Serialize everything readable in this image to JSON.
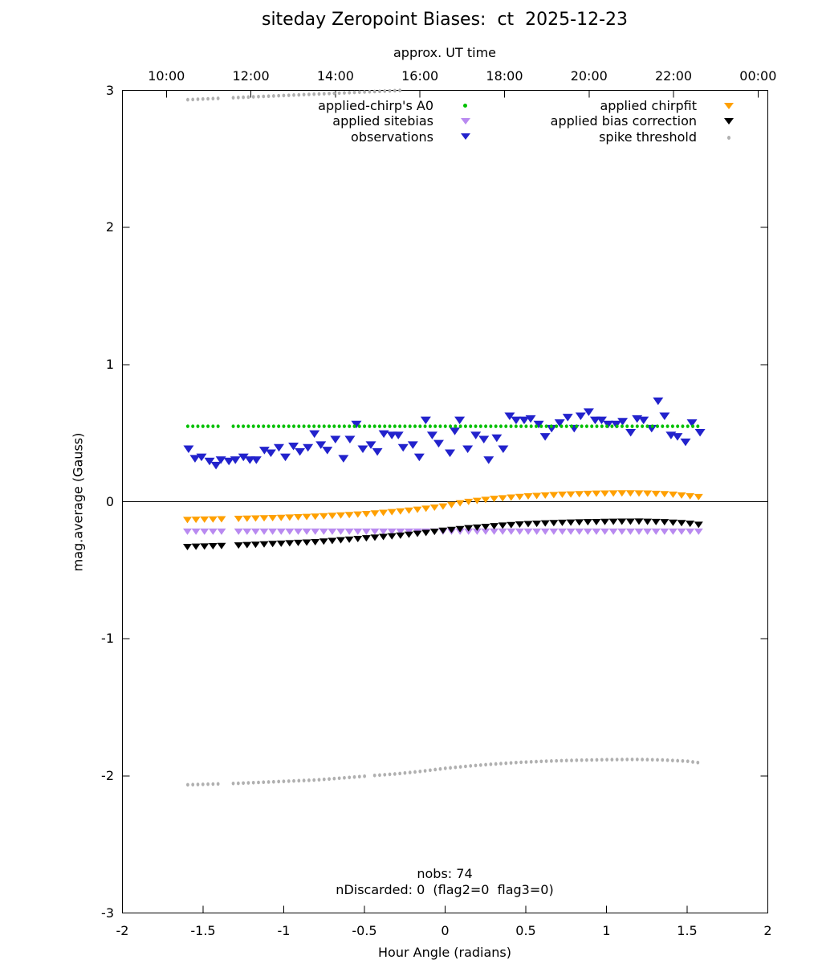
{
  "chart_data": {
    "type": "scatter",
    "title": "siteday Zeropoint Biases:  ct  2025-12-23",
    "x2label": "approx. UT time",
    "xlabel": "Hour Angle (radians)",
    "ylabel": "mag.average (Gauss)",
    "xlim": [
      -2,
      2
    ],
    "ylim": [
      -3,
      3
    ],
    "xticks": [
      -2,
      -1.5,
      -1,
      -0.5,
      0,
      0.5,
      1,
      1.5,
      2
    ],
    "yticks": [
      3,
      2,
      1,
      0,
      -1,
      -2,
      -3
    ],
    "x2ticks": [
      "10:00",
      "12:00",
      "14:00",
      "16:00",
      "18:00",
      "20:00",
      "22:00",
      "00:00"
    ],
    "annotations": [
      "nobs: 74",
      "nDiscarded: 0  (flag2=0  flag3=0)"
    ],
    "grid": false,
    "zero_line": true,
    "legend": {
      "position": "top-inside-two-columns",
      "left": [
        {
          "label": "applied-chirp's A0",
          "marker": "dot",
          "color": "#00C000"
        },
        {
          "label": "applied sitebias",
          "marker": "triangle-down",
          "color": "#B98AF0"
        },
        {
          "label": "observations",
          "marker": "triangle-down",
          "color": "#2222CC"
        }
      ],
      "right": [
        {
          "label": "applied chirpfit",
          "marker": "triangle-down",
          "color": "#FFA000"
        },
        {
          "label": "applied bias correction",
          "marker": "triangle-down",
          "color": "#000000"
        },
        {
          "label": "spike threshold",
          "marker": "dot",
          "color": "#B0B0B0"
        }
      ]
    },
    "gap": [
      -1.38,
      -1.318
    ],
    "series": {
      "a0": {
        "name": "applied-chirp's A0",
        "marker": "dot",
        "color": "#00C000",
        "style": "constant",
        "value": 0.55,
        "range": [
          -1.595,
          1.593
        ],
        "step": 0.0313
      },
      "sitebias": {
        "name": "applied sitebias",
        "marker": "triangle-down",
        "color": "#B98AF0",
        "style": "constant",
        "value": -0.213,
        "range": [
          -1.597,
          1.595
        ],
        "step": 0.0528
      },
      "chirpfit": {
        "name": "applied chirpfit",
        "marker": "triangle-down",
        "color": "#FFA000",
        "style": "curve",
        "range": [
          -1.597,
          1.595
        ],
        "step": 0.0528,
        "points": [
          [
            -1.6,
            -0.128
          ],
          [
            -1.3,
            -0.121
          ],
          [
            -1.0,
            -0.112
          ],
          [
            -0.8,
            -0.104
          ],
          [
            -0.6,
            -0.093
          ],
          [
            -0.4,
            -0.078
          ],
          [
            -0.2,
            -0.058
          ],
          [
            0,
            -0.028
          ],
          [
            0.12,
            0.0
          ],
          [
            0.3,
            0.025
          ],
          [
            0.5,
            0.043
          ],
          [
            0.7,
            0.055
          ],
          [
            0.9,
            0.063
          ],
          [
            1.1,
            0.066
          ],
          [
            1.25,
            0.065
          ],
          [
            1.4,
            0.058
          ],
          [
            1.5,
            0.047
          ],
          [
            1.6,
            0.035
          ]
        ]
      },
      "bias_correction": {
        "name": "applied bias correction",
        "marker": "triangle-down",
        "color": "#000000",
        "style": "curve",
        "range": [
          -1.597,
          1.595
        ],
        "step": 0.0528,
        "points": [
          [
            -1.6,
            -0.325
          ],
          [
            -1.3,
            -0.315
          ],
          [
            -1.0,
            -0.3
          ],
          [
            -0.8,
            -0.29
          ],
          [
            -0.6,
            -0.272
          ],
          [
            -0.45,
            -0.258
          ],
          [
            -0.3,
            -0.245
          ],
          [
            -0.15,
            -0.227
          ],
          [
            0,
            -0.205
          ],
          [
            0.15,
            -0.188
          ],
          [
            0.3,
            -0.174
          ],
          [
            0.45,
            -0.162
          ],
          [
            0.6,
            -0.154
          ],
          [
            0.75,
            -0.148
          ],
          [
            0.9,
            -0.144
          ],
          [
            1.05,
            -0.141
          ],
          [
            1.2,
            -0.14
          ],
          [
            1.35,
            -0.144
          ],
          [
            1.5,
            -0.153
          ],
          [
            1.6,
            -0.168
          ]
        ]
      },
      "observations": {
        "name": "observations",
        "marker": "triangle-down",
        "color": "#2222CC",
        "style": "scatter",
        "nobs": 74,
        "points": [
          [
            -1.59,
            0.39
          ],
          [
            -1.55,
            0.32
          ],
          [
            -1.51,
            0.33
          ],
          [
            -1.46,
            0.3
          ],
          [
            -1.42,
            0.27
          ],
          [
            -1.39,
            0.31
          ],
          [
            -1.34,
            0.3
          ],
          [
            -1.3,
            0.31
          ],
          [
            -1.25,
            0.33
          ],
          [
            -1.21,
            0.31
          ],
          [
            -1.17,
            0.31
          ],
          [
            -1.12,
            0.38
          ],
          [
            -1.08,
            0.36
          ],
          [
            -1.03,
            0.4
          ],
          [
            -0.99,
            0.33
          ],
          [
            -0.94,
            0.41
          ],
          [
            -0.9,
            0.37
          ],
          [
            -0.85,
            0.4
          ],
          [
            -0.81,
            0.5
          ],
          [
            -0.77,
            0.42
          ],
          [
            -0.73,
            0.38
          ],
          [
            -0.68,
            0.46
          ],
          [
            -0.63,
            0.32
          ],
          [
            -0.59,
            0.46
          ],
          [
            -0.55,
            0.57
          ],
          [
            -0.51,
            0.39
          ],
          [
            -0.46,
            0.42
          ],
          [
            -0.42,
            0.37
          ],
          [
            -0.38,
            0.5
          ],
          [
            -0.33,
            0.49
          ],
          [
            -0.29,
            0.49
          ],
          [
            -0.26,
            0.4
          ],
          [
            -0.2,
            0.42
          ],
          [
            -0.16,
            0.33
          ],
          [
            -0.12,
            0.6
          ],
          [
            -0.08,
            0.49
          ],
          [
            -0.04,
            0.43
          ],
          [
            0.03,
            0.36
          ],
          [
            0.06,
            0.52
          ],
          [
            0.09,
            0.6
          ],
          [
            0.14,
            0.39
          ],
          [
            0.19,
            0.49
          ],
          [
            0.24,
            0.46
          ],
          [
            0.27,
            0.31
          ],
          [
            0.32,
            0.47
          ],
          [
            0.36,
            0.39
          ],
          [
            0.4,
            0.63
          ],
          [
            0.44,
            0.6
          ],
          [
            0.49,
            0.6
          ],
          [
            0.53,
            0.61
          ],
          [
            0.58,
            0.57
          ],
          [
            0.62,
            0.48
          ],
          [
            0.66,
            0.54
          ],
          [
            0.71,
            0.58
          ],
          [
            0.76,
            0.62
          ],
          [
            0.8,
            0.54
          ],
          [
            0.84,
            0.63
          ],
          [
            0.89,
            0.66
          ],
          [
            0.93,
            0.6
          ],
          [
            0.97,
            0.6
          ],
          [
            1.01,
            0.57
          ],
          [
            1.06,
            0.57
          ],
          [
            1.1,
            0.59
          ],
          [
            1.15,
            0.51
          ],
          [
            1.19,
            0.61
          ],
          [
            1.23,
            0.6
          ],
          [
            1.28,
            0.54
          ],
          [
            1.32,
            0.74
          ],
          [
            1.36,
            0.63
          ],
          [
            1.4,
            0.49
          ],
          [
            1.44,
            0.48
          ],
          [
            1.49,
            0.44
          ],
          [
            1.53,
            0.58
          ],
          [
            1.58,
            0.51
          ]
        ]
      },
      "spike_threshold": {
        "name": "spike threshold",
        "marker": "dot",
        "color": "#B0B0B0",
        "style": "threshold-band",
        "step": 0.0313,
        "top_line": [
          [
            -1.595,
            2.932
          ],
          [
            -0.27,
            3.0
          ]
        ],
        "bottom_base": "bias_correction",
        "bottom_offset": -1.74,
        "bottom_range": [
          -1.595,
          1.593
        ],
        "bottom_gap2": [
          -0.48,
          -0.455
        ]
      }
    }
  }
}
